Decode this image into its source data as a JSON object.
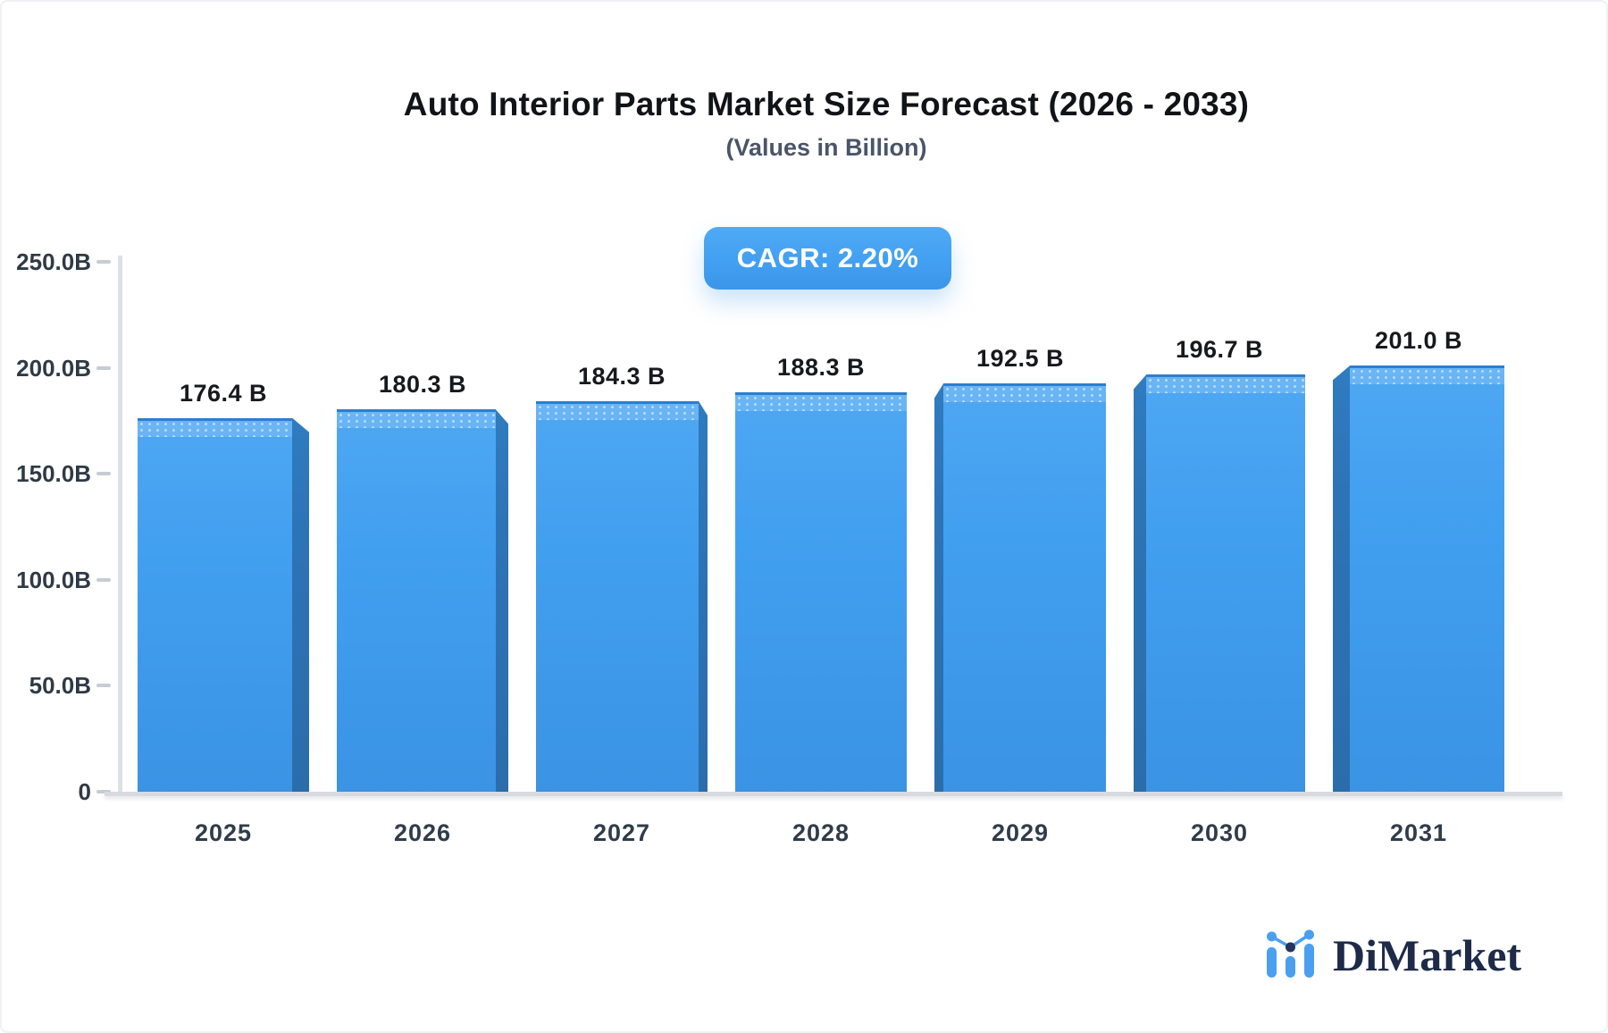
{
  "header": {
    "title": "Auto Interior Parts Market Size Forecast (2026 - 2033)",
    "subtitle": "(Values in Billion)",
    "cagr_badge": "CAGR: 2.20%"
  },
  "chart_data": {
    "type": "bar",
    "title": "Auto Interior Parts Market Size Forecast (2026 - 2033)",
    "subtitle": "(Values in Billion)",
    "unit": "Billion",
    "cagr_percent": 2.2,
    "categories": [
      "2025",
      "2026",
      "2027",
      "2028",
      "2029",
      "2030",
      "2031"
    ],
    "values": [
      176.4,
      180.3,
      184.3,
      188.3,
      192.5,
      196.7,
      201.0
    ],
    "value_labels": [
      "176.4 B",
      "180.3 B",
      "184.3 B",
      "188.3 B",
      "192.5 B",
      "196.7 B",
      "201.0 B"
    ],
    "xlabel": "",
    "ylabel": "",
    "ylim": [
      0,
      250
    ],
    "y_ticks": [
      {
        "label": "250.0B",
        "value": 250
      },
      {
        "label": "200.0B",
        "value": 200
      },
      {
        "label": "150.0B",
        "value": 150
      },
      {
        "label": "100.0B",
        "value": 100
      },
      {
        "label": "50.0B",
        "value": 50
      },
      {
        "label": "0",
        "value": 0
      }
    ],
    "grid": false,
    "legend": "none",
    "bar_color": "#3f9ded",
    "bar_side_color": "#2e76b8"
  },
  "colors": {
    "accent_blue": "#42a0f2",
    "badge_bg": "#42a0f2",
    "badge_text": "#ffffff",
    "axis_gray": "#d9dde3",
    "tick_label": "#2f3a47",
    "value_label": "#17191c",
    "title_text": "#101317",
    "subtitle_text": "#4a5568",
    "logo_navy": "#1d2b49",
    "logo_blue": "#4b9ff1"
  },
  "logo": {
    "text": "DiMarket",
    "icon": "bar-chart-logo-icon"
  }
}
